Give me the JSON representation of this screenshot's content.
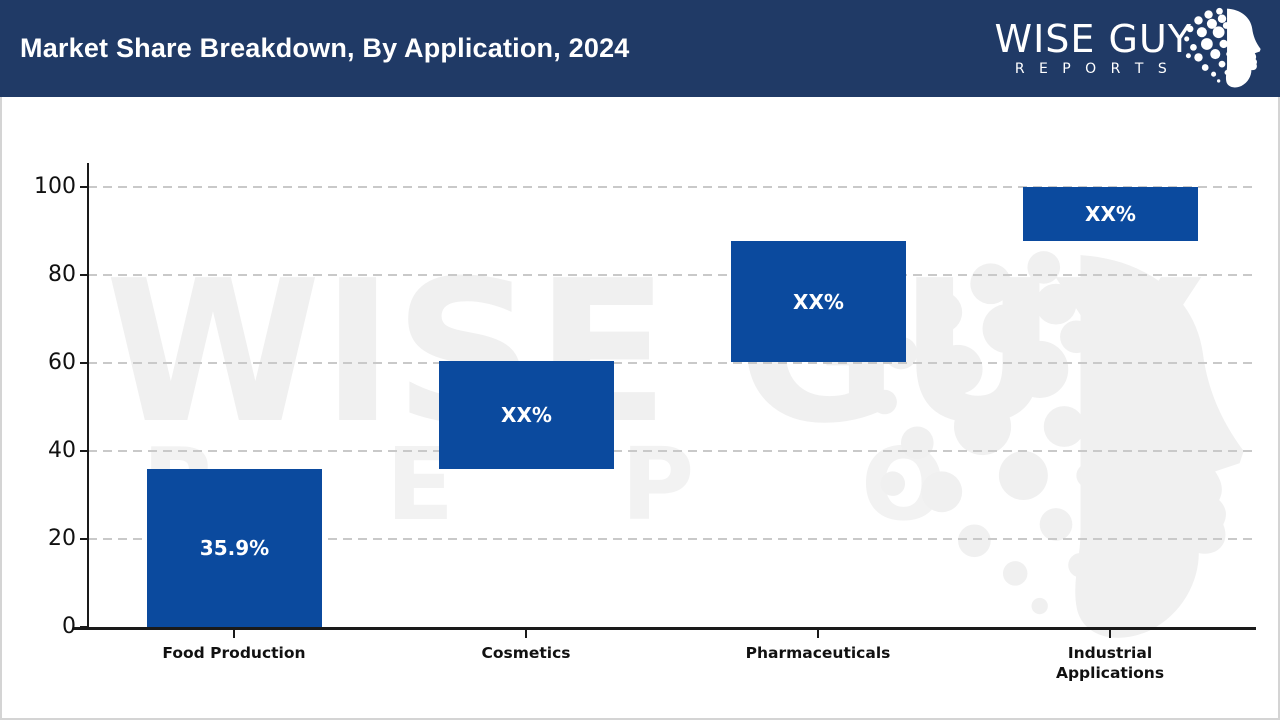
{
  "header": {
    "title": "Market Share Breakdown, By Application, 2024",
    "logo": {
      "brand": "WISE GUY",
      "sub": "R E P O R T S",
      "head_icon": "dotted-head-profile"
    }
  },
  "watermark": {
    "brand": "WISE GUY",
    "sub": "R E P O R T S",
    "head_icon": "dotted-head-profile"
  },
  "colors": {
    "header_bg": "#203a66",
    "bar": "#0b4a9e",
    "bar_label": "#ffffff",
    "grid": "#c9c9c9",
    "axis": "#1a1a1a",
    "tick_text": "#111111",
    "watermark": "#f0f0f0",
    "page_border": "#d4d4d4"
  },
  "chart_data": {
    "type": "bar",
    "subtype": "waterfall-stacked-breakdown",
    "title": "Market Share Breakdown, By Application, 2024",
    "categories": [
      "Food Production",
      "Cosmetics",
      "Pharmaceuticals",
      "Industrial Applications"
    ],
    "series": [
      {
        "name": "Market share (%)",
        "segments": [
          {
            "category": "Food Production",
            "start": 0,
            "end": 35.9,
            "label": "35.9%"
          },
          {
            "category": "Cosmetics",
            "start": 35.9,
            "end": 60.4,
            "label": "XX%"
          },
          {
            "category": "Pharmaceuticals",
            "start": 60.4,
            "end": 87.8,
            "label": "XX%"
          },
          {
            "category": "Industrial Applications",
            "start": 87.8,
            "end": 100,
            "label": "XX%"
          }
        ]
      }
    ],
    "xlabel": "",
    "ylabel": "",
    "yticks": [
      0,
      20,
      40,
      60,
      80,
      100
    ],
    "ylim": [
      0,
      105
    ],
    "grid": "horizontal-dashed",
    "legend": "none"
  }
}
